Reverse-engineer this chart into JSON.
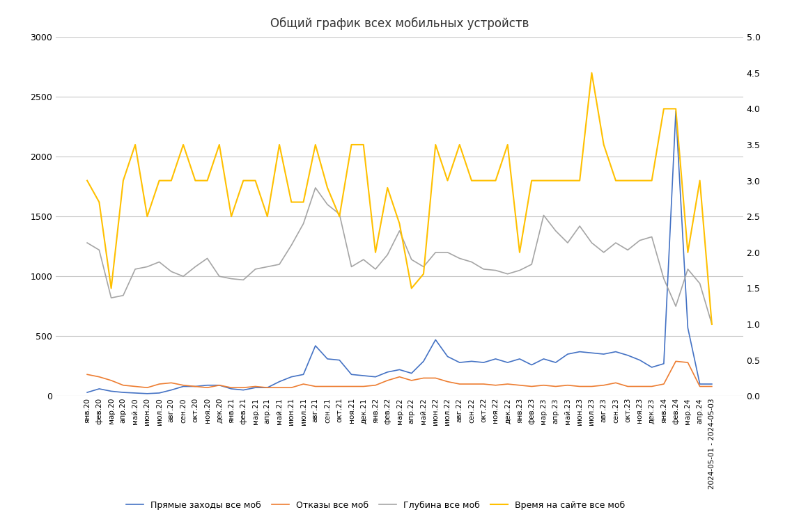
{
  "title": "Общий график всех мобильных устройств",
  "labels": [
    "янв.20",
    "фев.20",
    "мар.20",
    "апр.20",
    "май.20",
    "июн.20",
    "июл.20",
    "авг.20",
    "сен.20",
    "окт.20",
    "ноя.20",
    "дек.20",
    "янв.21",
    "фев.21",
    "мар.21",
    "апр.21",
    "май.21",
    "июн.21",
    "июл.21",
    "авг.21",
    "сен.21",
    "окт.21",
    "ноя.21",
    "дек.21",
    "янв.22",
    "фев.22",
    "мар.22",
    "апр.22",
    "май.22",
    "июн.22",
    "июл.22",
    "авг.22",
    "сен.22",
    "окт.22",
    "ноя.22",
    "дек.22",
    "янв.23",
    "фев.23",
    "мар.23",
    "апр.23",
    "май.23",
    "июн.23",
    "июл.23",
    "авг.23",
    "сен.23",
    "окт.23",
    "ноя.23",
    "дек.23",
    "янв.24",
    "фев.24",
    "мар.24",
    "апр.24",
    "2024-05-01 - 2024-05-03"
  ],
  "direct_visits": [
    30,
    60,
    40,
    30,
    25,
    20,
    25,
    50,
    80,
    80,
    90,
    90,
    60,
    50,
    70,
    70,
    120,
    160,
    180,
    420,
    310,
    300,
    180,
    170,
    160,
    200,
    220,
    190,
    290,
    470,
    330,
    280,
    290,
    280,
    310,
    280,
    310,
    260,
    310,
    280,
    350,
    370,
    360,
    350,
    370,
    340,
    300,
    240,
    270,
    2380,
    570,
    100,
    100
  ],
  "bounces": [
    180,
    160,
    130,
    90,
    80,
    70,
    100,
    110,
    90,
    80,
    70,
    90,
    70,
    70,
    80,
    70,
    70,
    70,
    100,
    80,
    80,
    80,
    80,
    80,
    90,
    130,
    160,
    130,
    150,
    150,
    120,
    100,
    100,
    100,
    90,
    100,
    90,
    80,
    90,
    80,
    90,
    80,
    80,
    90,
    110,
    80,
    80,
    80,
    100,
    290,
    280,
    80,
    80
  ],
  "depth": [
    1280,
    1220,
    820,
    840,
    1060,
    1080,
    1120,
    1040,
    1000,
    1080,
    1150,
    1000,
    980,
    970,
    1060,
    1080,
    1100,
    1260,
    1440,
    1740,
    1600,
    1520,
    1080,
    1140,
    1060,
    1180,
    1380,
    1140,
    1080,
    1200,
    1200,
    1150,
    1120,
    1060,
    1050,
    1020,
    1050,
    1100,
    1510,
    1380,
    1280,
    1420,
    1280,
    1200,
    1280,
    1220,
    1300,
    1330,
    980,
    750,
    1060,
    940,
    600
  ],
  "time_on_site": [
    3.0,
    2.7,
    1.5,
    3.0,
    3.5,
    2.5,
    3.0,
    3.0,
    3.5,
    3.0,
    3.0,
    3.5,
    2.5,
    3.0,
    3.0,
    2.5,
    3.5,
    2.7,
    2.7,
    3.5,
    2.9,
    2.5,
    3.5,
    3.5,
    2.0,
    2.9,
    2.4,
    1.5,
    1.7,
    3.5,
    3.0,
    3.5,
    3.0,
    3.0,
    3.0,
    3.5,
    2.0,
    3.0,
    3.0,
    3.0,
    3.0,
    3.0,
    4.5,
    3.5,
    3.0,
    3.0,
    3.0,
    3.0,
    4.0,
    4.0,
    2.0,
    3.0,
    1.0
  ],
  "left_ylim": [
    0,
    3000
  ],
  "right_ylim": [
    0,
    5
  ],
  "left_yticks": [
    0,
    500,
    1000,
    1500,
    2000,
    2500,
    3000
  ],
  "right_yticks": [
    0,
    0.5,
    1,
    1.5,
    2,
    2.5,
    3,
    3.5,
    4,
    4.5,
    5
  ],
  "colors": {
    "direct_visits": "#4472c4",
    "bounces": "#ed7d31",
    "depth": "#a5a5a5",
    "time_on_site": "#ffc000"
  },
  "legend_labels": [
    "Прямые заходы все моб",
    "Отказы все моб",
    "Глубина все моб",
    "Время на сайте все моб"
  ],
  "background_color": "#ffffff",
  "grid_color": "#c8c8c8"
}
